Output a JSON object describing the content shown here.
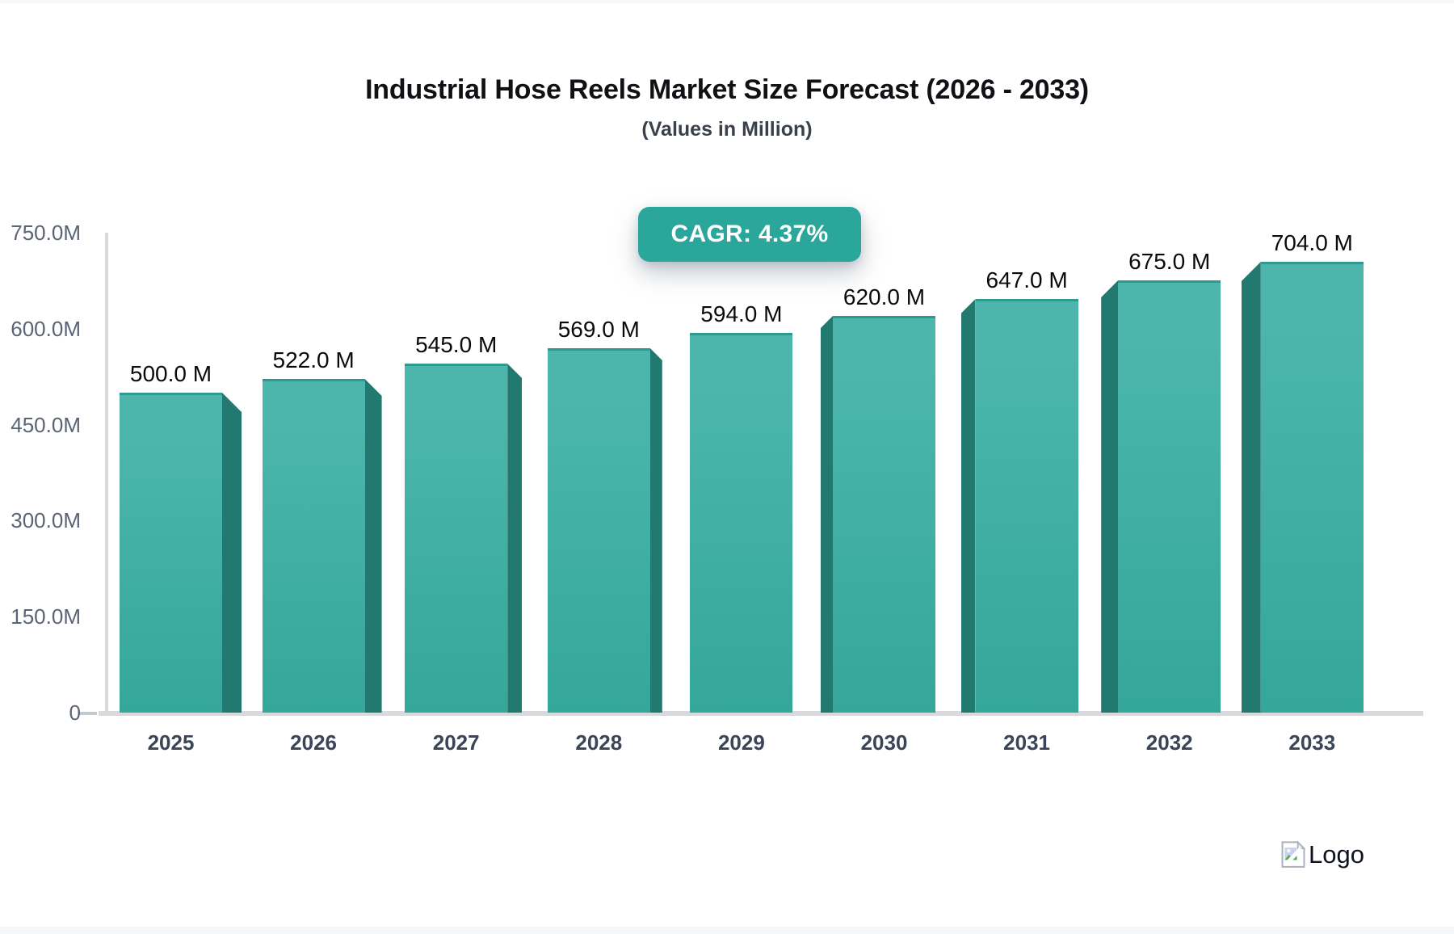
{
  "title": "Industrial Hose Reels Market Size Forecast (2026 - 2033)",
  "subtitle": "(Values in Million)",
  "cagr_badge": {
    "label": "CAGR: 4.37%",
    "background": "#2aa69a",
    "text_color": "#ffffff"
  },
  "logo": {
    "alt_text": "Logo"
  },
  "chart_data": {
    "type": "bar",
    "title": "Industrial Hose Reels Market Size Forecast (2026 - 2033)",
    "subtitle": "(Values in Million)",
    "categories": [
      "2025",
      "2026",
      "2027",
      "2028",
      "2029",
      "2030",
      "2031",
      "2032",
      "2033"
    ],
    "values": [
      500,
      522,
      545,
      569,
      594,
      620,
      647,
      675,
      704
    ],
    "value_labels": [
      "500.0 M",
      "522.0 M",
      "545.0 M",
      "569.0 M",
      "594.0 M",
      "620.0 M",
      "647.0 M",
      "675.0 M",
      "704.0 M"
    ],
    "ytick_values": [
      0,
      150,
      300,
      450,
      600,
      750
    ],
    "ytick_labels": [
      "0",
      "150.0M",
      "300.0M",
      "450.0M",
      "600.0M",
      "750.0M"
    ],
    "ylim": [
      0,
      750
    ],
    "xlabel": "",
    "ylabel": "",
    "grid": false,
    "legend": false,
    "style_3d": true,
    "colors": {
      "bar_face_top": "#4db6ac",
      "bar_face_bottom": "#34a79a",
      "bar_top_edge": "#2e9a90",
      "bar_side": "#21796f",
      "axis_line": "#d8dadd",
      "value_label": "#0a0a0a",
      "category_label": "#3a4557",
      "ytick_label": "#5a6475"
    }
  }
}
